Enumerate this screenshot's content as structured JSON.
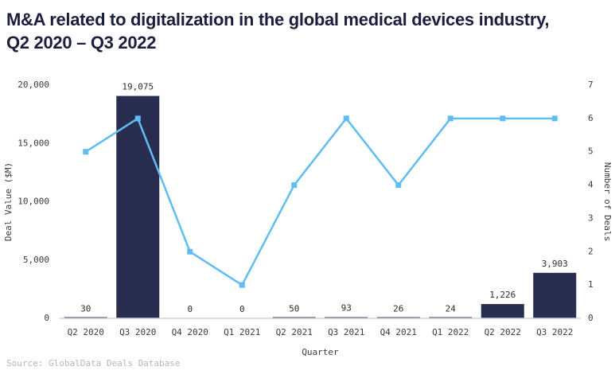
{
  "header": {
    "title": "M&A related to digitalization in the global medical devices industry, Q2 2020 – Q3 2022"
  },
  "source": "Source: GlobalData Deals Database",
  "colors": {
    "bar": "#282c4f",
    "line": "#5fbdf2",
    "title_text": "#1b1e3c",
    "axis_text": "#3b3b3b",
    "axis_line": "#d2d2da",
    "source_text": "#b6b6b6"
  },
  "chart_data": {
    "type": "bar",
    "subtype": "combo-bar-line",
    "title": "M&A related to digitalization in the global medical devices industry, Q2 2020 – Q3 2022",
    "categories": [
      "Q2 2020",
      "Q3 2020",
      "Q4 2020",
      "Q1 2021",
      "Q2 2021",
      "Q3 2021",
      "Q4 2021",
      "Q1 2022",
      "Q2 2022",
      "Q3 2022"
    ],
    "series": [
      {
        "name": "Deal Value ($M)",
        "type": "bar",
        "axis": "left",
        "values": [
          30,
          19075,
          0,
          0,
          50,
          93,
          26,
          24,
          1226,
          3903
        ],
        "labels": [
          "30",
          "19,075",
          "0",
          "0",
          "50",
          "93",
          "26",
          "24",
          "1,226",
          "3,903"
        ]
      },
      {
        "name": "Number of Deals",
        "type": "line",
        "axis": "right",
        "values": [
          5,
          6,
          2,
          1,
          4,
          6,
          4,
          6,
          6,
          6
        ]
      }
    ],
    "xlabel": "Quarter",
    "ylabel_left": "Deal Value ($M)",
    "ylabel_right": "Number of Deals",
    "ylim_left": [
      0,
      20000
    ],
    "ylim_right": [
      0,
      7
    ],
    "yticks_left": [
      "0",
      "5,000",
      "10,000",
      "15,000",
      "20,000"
    ],
    "yticks_right": [
      "0",
      "1",
      "2",
      "3",
      "4",
      "5",
      "6",
      "7"
    ],
    "grid": false,
    "legend": "none"
  }
}
